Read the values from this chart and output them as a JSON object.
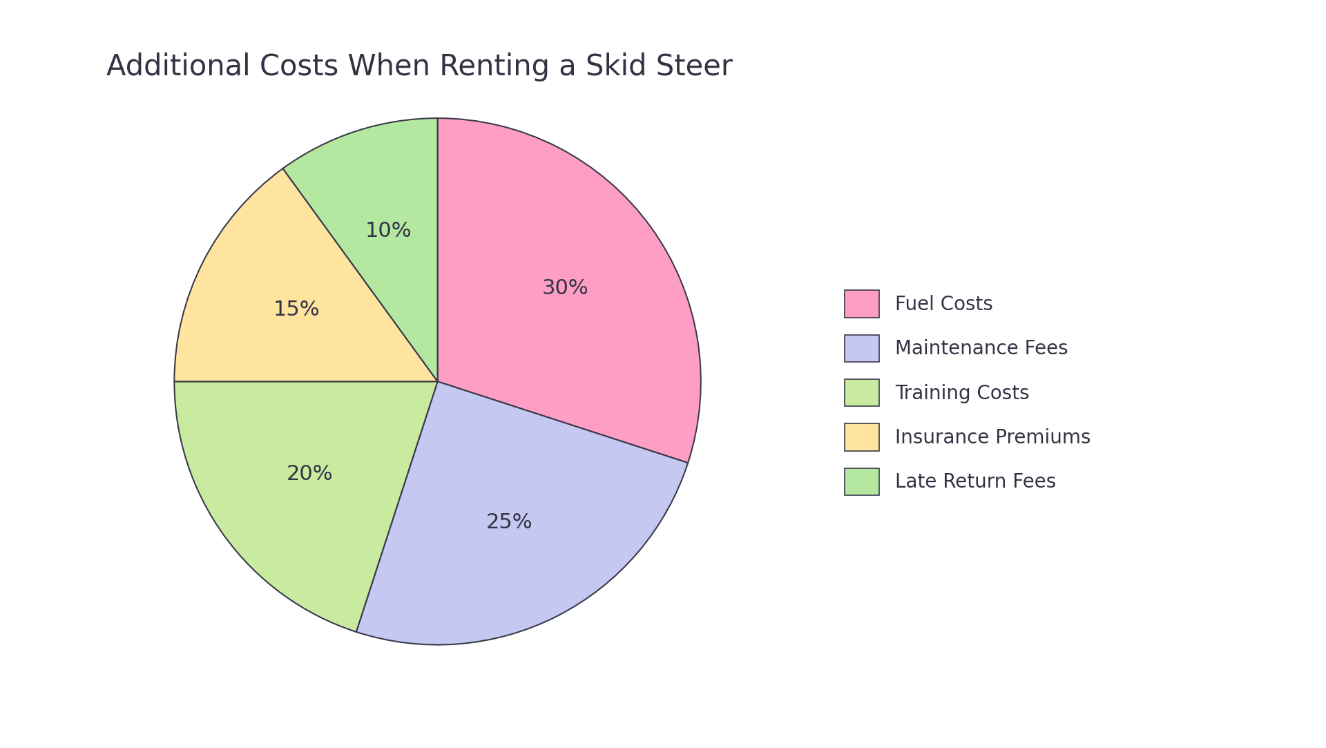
{
  "title": "Additional Costs When Renting a Skid Steer",
  "labels": [
    "Fuel Costs",
    "Maintenance Fees",
    "Training Costs",
    "Insurance Premiums",
    "Late Return Fees"
  ],
  "values": [
    30,
    25,
    20,
    15,
    10
  ],
  "colors": [
    "#FF9EC4",
    "#C5C8F0",
    "#C8EBA0",
    "#FFE4A0",
    "#B4E8A0"
  ],
  "edge_color": "#3a3a4a",
  "pct_labels": [
    "30%",
    "25%",
    "20%",
    "15%",
    "10%"
  ],
  "background_color": "#ffffff",
  "title_fontsize": 30,
  "pct_fontsize": 22,
  "legend_fontsize": 20,
  "start_angle": 90
}
